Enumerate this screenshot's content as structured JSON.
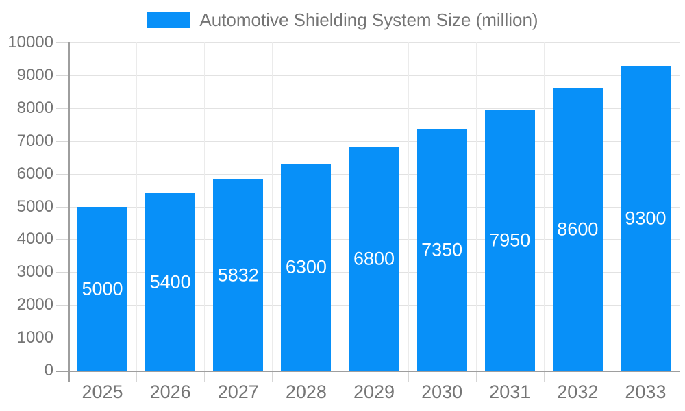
{
  "legend": {
    "label": "Automotive Shielding System Size (million)"
  },
  "chart_data": {
    "type": "bar",
    "title": "Automotive Shielding System Size (million)",
    "categories": [
      "2025",
      "2026",
      "2027",
      "2028",
      "2029",
      "2030",
      "2031",
      "2032",
      "2033"
    ],
    "series": [
      {
        "name": "Automotive Shielding System Size (million)",
        "values": [
          5000,
          5400,
          5832,
          6300,
          6800,
          7350,
          7950,
          8600,
          9300
        ]
      }
    ],
    "value_labels": [
      "5000",
      "5400",
      "5832",
      "6300",
      "6800",
      "7350",
      "7950",
      "8600",
      "9300"
    ],
    "xlabel": "",
    "ylabel": "",
    "ylim": [
      0,
      10000
    ],
    "ytick_interval": 1000,
    "ytick_labels": [
      "0",
      "1000",
      "2000",
      "3000",
      "4000",
      "5000",
      "6000",
      "7000",
      "8000",
      "9000",
      "10000"
    ],
    "grid": true,
    "legend_position": "top",
    "value_label_position": "inside-center"
  },
  "colors": {
    "bar": "#0890f8",
    "bar_value_text": "#ffffff",
    "axis_line": "#9e9e9e",
    "tick": "#d6d6d6",
    "gridline_h": "#e2e2e2",
    "gridline_v": "#ebebeb",
    "label_text": "#757575"
  }
}
